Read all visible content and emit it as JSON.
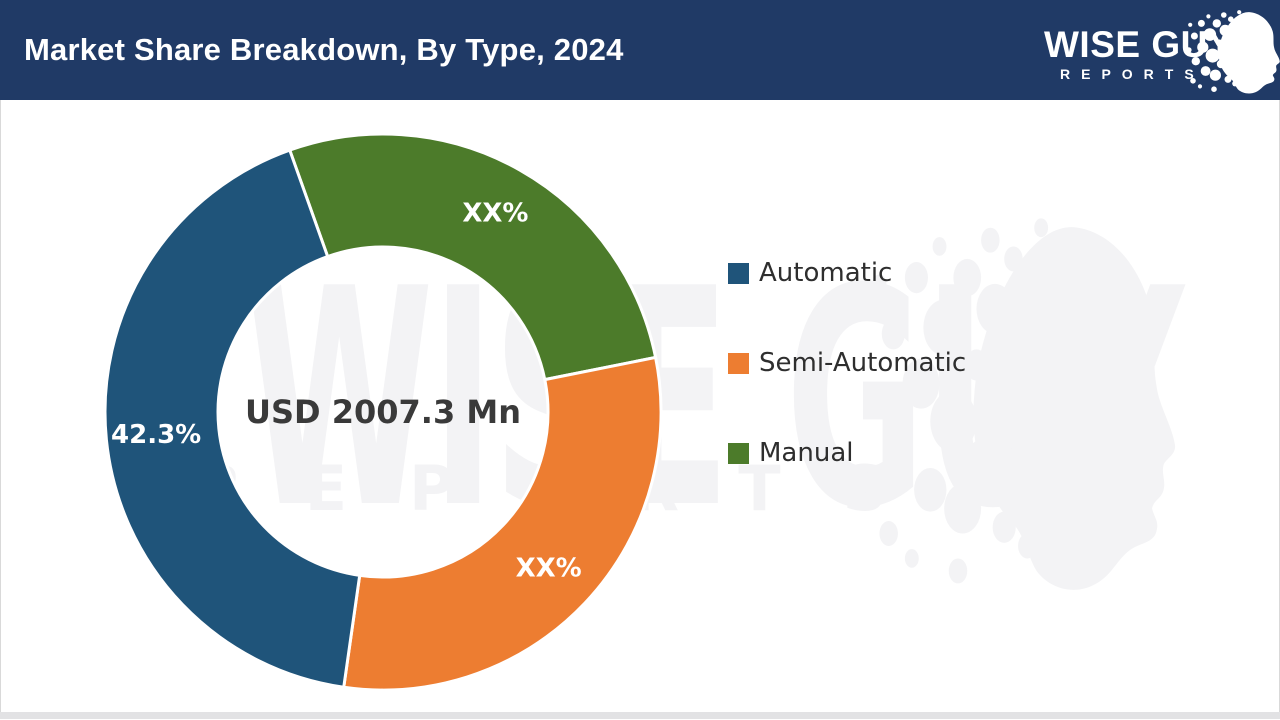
{
  "header": {
    "title": "Market Share Breakdown, By Type, 2024",
    "bg_color": "#203A66",
    "logo": {
      "line1": "WISE GUY",
      "line2": "REPORTS",
      "color": "#ffffff"
    }
  },
  "watermark": {
    "text1": "WISE GUY",
    "text2": "REPORTS",
    "color": "#f3f3f5"
  },
  "legend": {
    "position": "right",
    "items": [
      {
        "label": "Automatic",
        "color": "#1F547A"
      },
      {
        "label": "Semi-Automatic",
        "color": "#ED7D31"
      },
      {
        "label": "Manual",
        "color": "#4C7B2A"
      }
    ]
  },
  "chart_data": {
    "type": "pie",
    "donut": true,
    "title": "Market Share Breakdown, By Type, 2024",
    "center_label": "USD 2007.3 Mn",
    "center_label_color": "#3A3A3A",
    "slice_label_color": "#ffffff",
    "separator_color": "#ffffff",
    "rotation_deg": 109.6,
    "legend_position": "right",
    "slices": [
      {
        "name": "Manual",
        "label": "XX%",
        "pct": 27.3,
        "color": "#4C7B2A"
      },
      {
        "name": "Semi-Automatic",
        "label": "XX%",
        "pct": 30.4,
        "color": "#ED7D31"
      },
      {
        "name": "Automatic",
        "label": "42.3%",
        "pct": 42.3,
        "color": "#1F547A"
      }
    ]
  },
  "footer": {
    "strip_color": "#e2e2e4"
  }
}
